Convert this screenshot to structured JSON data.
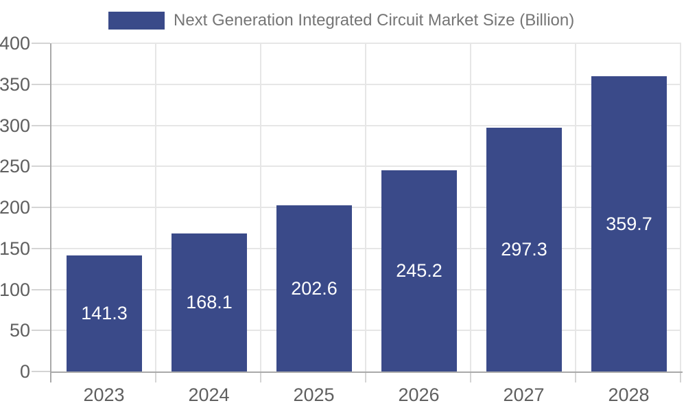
{
  "legend": {
    "label": "Next Generation Integrated Circuit Market Size (Billion)"
  },
  "colors": {
    "background": "#FFFFFF",
    "bar": "#3A4A89",
    "grid": "#E6E6E6",
    "axis": "#A9A9A9",
    "tick": "#D4D4D4",
    "tick_label": "#5F5F5F",
    "legend_text": "#757575",
    "value_label": "#FFFFFF"
  },
  "chart_data": {
    "type": "bar",
    "title": "",
    "categories": [
      "2023",
      "2024",
      "2025",
      "2026",
      "2027",
      "2028"
    ],
    "values": [
      141.3,
      168.1,
      202.6,
      245.2,
      297.3,
      359.7
    ],
    "series_name": "Next Generation Integrated Circuit Market Size (Billion)",
    "xlabel": "",
    "ylabel": "",
    "ylim": [
      0,
      400
    ],
    "yticks": [
      0,
      50,
      100,
      150,
      200,
      250,
      300,
      350,
      400
    ],
    "grid": true,
    "legend_position": "top",
    "value_label_position": "inside-center"
  }
}
